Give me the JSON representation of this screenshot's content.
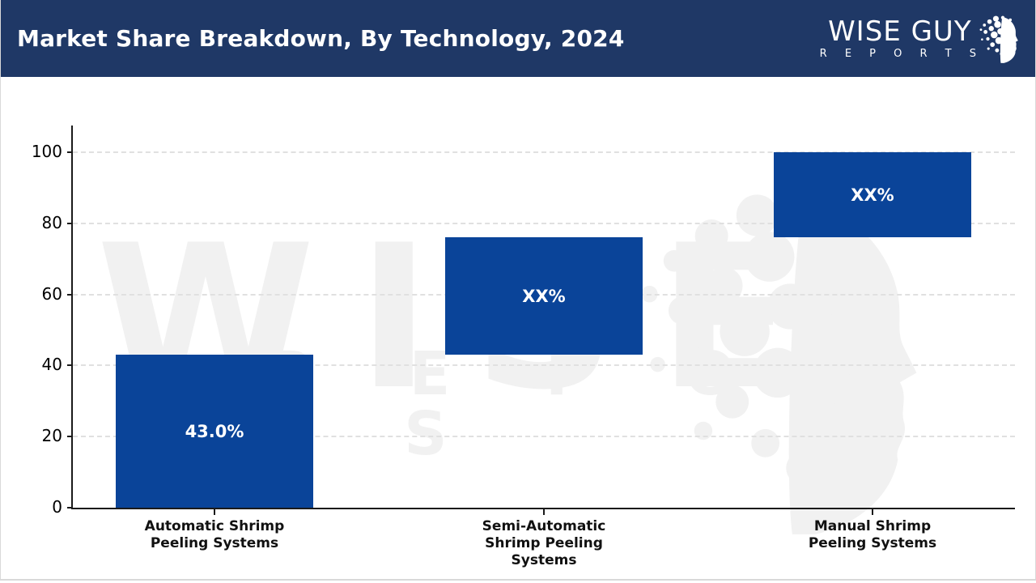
{
  "header": {
    "title": "Market Share Breakdown, By Technology, 2024",
    "logo": {
      "line1": "WISE GUY",
      "line2": "REPORTS"
    }
  },
  "watermark": {
    "line1": "WISE",
    "line2": "REPORTS"
  },
  "icons": {
    "logo_face": "dotted-head-profile-icon"
  },
  "colors": {
    "header_bg": "#1f3866",
    "bar": "#0a4499",
    "grid": "#e0e0e0",
    "axis": "#1a1a1a",
    "bar_label": "#ffffff",
    "watermark": "#f1f1f1"
  },
  "chart_data": {
    "type": "bar",
    "subtype": "waterfall",
    "title": "Market Share Breakdown, By Technology, 2024",
    "xlabel": "",
    "ylabel": "",
    "categories": [
      [
        "Automatic Shrimp",
        "Peeling Systems"
      ],
      [
        "Semi-Automatic",
        "Shrimp Peeling",
        "Systems"
      ],
      [
        "Manual Shrimp",
        "Peeling Systems"
      ]
    ],
    "segments": [
      {
        "category": "Automatic Shrimp Peeling Systems",
        "start": 0,
        "end": 43,
        "value_label": "43.0%"
      },
      {
        "category": "Semi-Automatic Shrimp Peeling Systems",
        "start": 43,
        "end": 76,
        "value_label": "XX%"
      },
      {
        "category": "Manual Shrimp Peeling Systems",
        "start": 76,
        "end": 100,
        "value_label": "XX%"
      }
    ],
    "yticks": [
      0,
      20,
      40,
      60,
      80,
      100
    ],
    "ylim": [
      0,
      100
    ],
    "grid": "horizontal-dashed",
    "legend": "none"
  }
}
